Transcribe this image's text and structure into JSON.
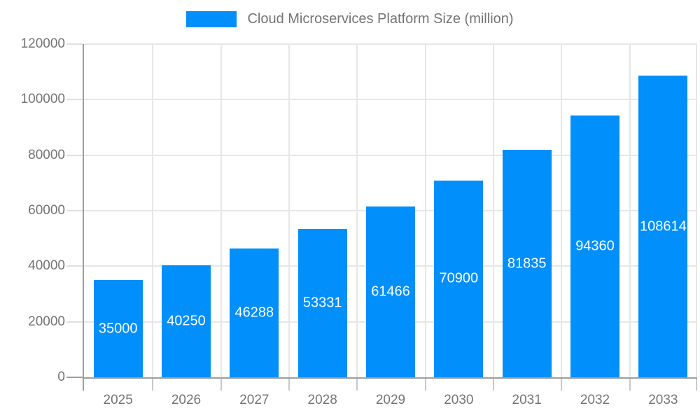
{
  "legend": {
    "label": "Cloud Microservices Platform Size (million)"
  },
  "chart_data": {
    "type": "bar",
    "title": "Cloud Microservices Platform Size (million)",
    "series_name": "Cloud Microservices Platform Size (million)",
    "categories": [
      "2025",
      "2026",
      "2027",
      "2028",
      "2029",
      "2030",
      "2031",
      "2032",
      "2033"
    ],
    "values": [
      35000,
      40250,
      46288,
      53331,
      61466,
      70900,
      81835,
      94360,
      108614
    ],
    "value_labels": [
      "35000",
      "40250",
      "46288",
      "53331",
      "61466",
      "70900",
      "81835",
      "94360",
      "108614"
    ],
    "xlabel": "",
    "ylabel": "",
    "ylim": [
      0,
      120000
    ],
    "y_ticks": [
      0,
      20000,
      40000,
      60000,
      80000,
      100000,
      120000
    ],
    "y_tick_labels": [
      "0",
      "20000",
      "40000",
      "60000",
      "80000",
      "100000",
      "120000"
    ],
    "grid": true,
    "legend_position": "top",
    "colors": {
      "bar": "#008FFB",
      "axis_line": "#9e9e9e",
      "gridline": "#e7e7e7",
      "tick": "#c9c9c9",
      "axis_label": "#757575",
      "value_label": "#ffffff",
      "background": "#ffffff"
    }
  }
}
